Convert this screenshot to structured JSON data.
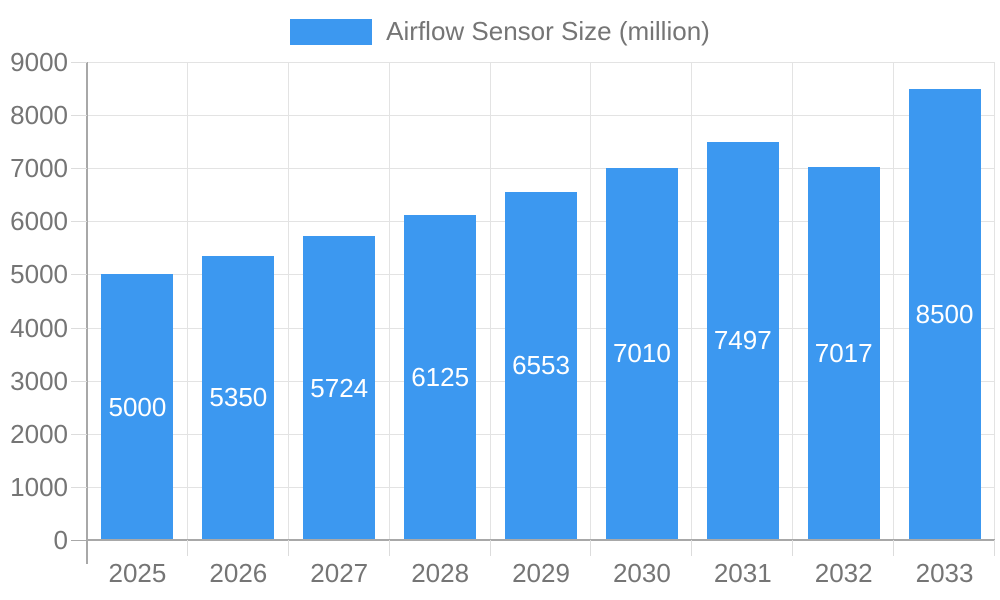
{
  "legend": {
    "label": "Airflow Sensor Size (million)"
  },
  "chart_data": {
    "type": "bar",
    "title": "Airflow Sensor Size (million)",
    "categories": [
      "2025",
      "2026",
      "2027",
      "2028",
      "2029",
      "2030",
      "2031",
      "2032",
      "2033"
    ],
    "series": [
      {
        "name": "Airflow Sensor Size (million)",
        "values": [
          5000,
          5350,
          5724,
          6125,
          6553,
          7010,
          7497,
          7017,
          8500
        ]
      }
    ],
    "value_labels": [
      "5000",
      "5350",
      "5724",
      "6125",
      "6553",
      "7010",
      "7497",
      "7017",
      "8500"
    ],
    "xlabel": "",
    "ylabel": "",
    "ylim": [
      0,
      9000
    ],
    "yticks": [
      0,
      1000,
      2000,
      3000,
      4000,
      5000,
      6000,
      7000,
      8000,
      9000
    ],
    "grid": true,
    "legend_position": "top",
    "colors": {
      "bar": "#3C98F0",
      "grid": "#e3e3e3",
      "axis": "#a8a8a8",
      "tick": "#dcdcdc",
      "text": "#757575",
      "value_label": "#ffffff",
      "background": "#ffffff"
    }
  }
}
